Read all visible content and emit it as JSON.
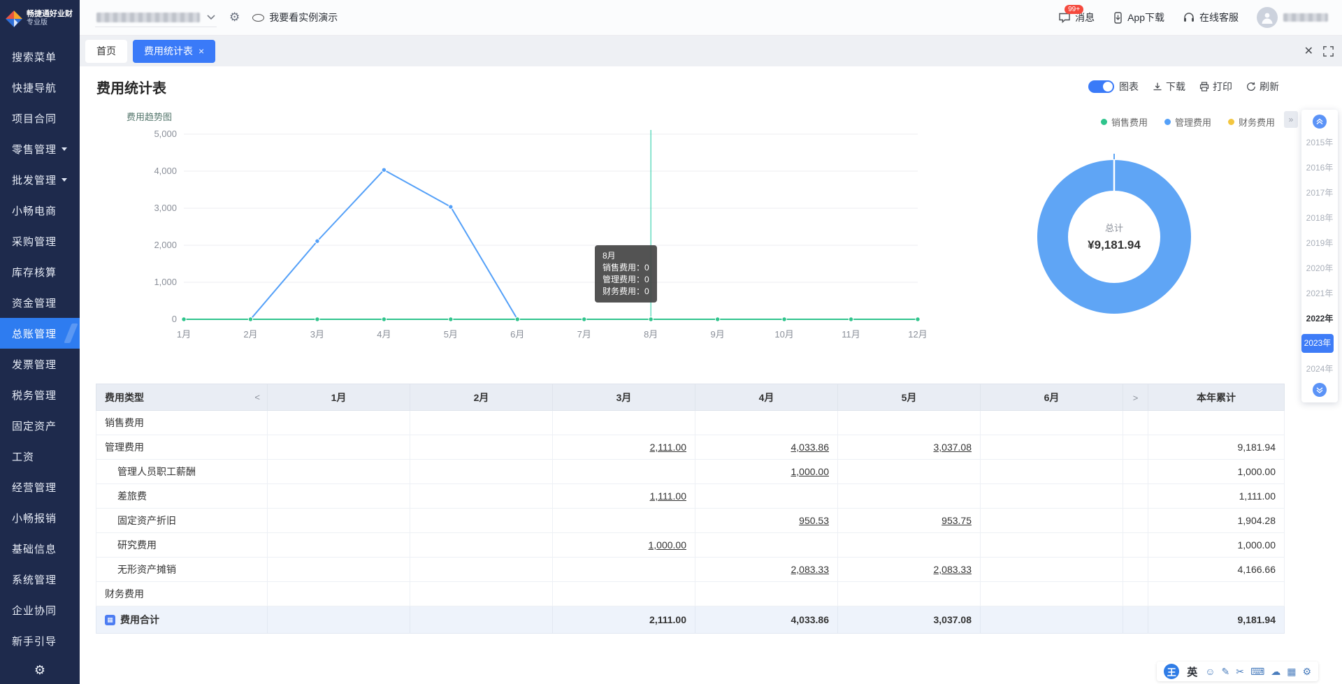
{
  "app": {
    "logo_title": "畅捷通好业财",
    "logo_subtitle": "专业版"
  },
  "sidebar": {
    "items": [
      {
        "label": "搜索菜单"
      },
      {
        "label": "快捷导航"
      },
      {
        "label": "项目合同"
      },
      {
        "label": "零售管理",
        "caret": true
      },
      {
        "label": "批发管理",
        "caret": true
      },
      {
        "label": "小畅电商"
      },
      {
        "label": "采购管理"
      },
      {
        "label": "库存核算"
      },
      {
        "label": "资金管理"
      },
      {
        "label": "总账管理",
        "active": true
      },
      {
        "label": "发票管理"
      },
      {
        "label": "税务管理"
      },
      {
        "label": "固定资产"
      },
      {
        "label": "工资"
      },
      {
        "label": "经营管理"
      },
      {
        "label": "小畅报销"
      },
      {
        "label": "基础信息"
      },
      {
        "label": "系统管理"
      },
      {
        "label": "企业协同"
      },
      {
        "label": "新手引导"
      }
    ]
  },
  "topbar": {
    "demo_link": "我要看实例演示",
    "messages_label": "消息",
    "messages_badge": "99+",
    "app_download_label": "App下载",
    "support_label": "在线客服"
  },
  "tabbar": {
    "tabs": [
      {
        "label": "首页",
        "active": false
      },
      {
        "label": "费用统计表",
        "active": true,
        "closable": true
      }
    ]
  },
  "page": {
    "title": "费用统计表",
    "toggle_label": "图表",
    "download_label": "下载",
    "print_label": "打印",
    "refresh_label": "刷新"
  },
  "chart_data": [
    {
      "type": "line",
      "title": "费用趋势图",
      "categories": [
        "1月",
        "2月",
        "3月",
        "4月",
        "5月",
        "6月",
        "7月",
        "8月",
        "9月",
        "10月",
        "11月",
        "12月"
      ],
      "series": [
        {
          "name": "销售费用",
          "color": "#2fc48c",
          "values": [
            0,
            0,
            0,
            0,
            0,
            0,
            0,
            0,
            0,
            0,
            0,
            0
          ]
        },
        {
          "name": "管理费用",
          "color": "#54a0f8",
          "values": [
            0,
            0,
            2111.0,
            4033.86,
            3037.08,
            0,
            0,
            0,
            0,
            0,
            0,
            0
          ]
        },
        {
          "name": "财务费用",
          "color": "#f3c63f",
          "values": [
            0,
            0,
            0,
            0,
            0,
            0,
            0,
            0,
            0,
            0,
            0,
            0
          ]
        }
      ],
      "ylim": [
        0,
        5000
      ],
      "yticks": [
        0,
        1000,
        2000,
        3000,
        4000,
        5000
      ],
      "legend_position": "top-right",
      "grid": true,
      "tooltip": {
        "month": "8月",
        "lines": [
          "销售费用：0",
          "管理费用：0",
          "财务费用：0"
        ],
        "crosshair_color": "#40d2b0"
      }
    },
    {
      "type": "donut",
      "total_label": "总计",
      "total_value": "¥9,181.94",
      "slices": [
        {
          "name": "管理费用",
          "value": 9181.94,
          "color": "#5fa5f5"
        },
        {
          "name": "销售费用",
          "value": 0,
          "color": "#2fc48c"
        },
        {
          "name": "财务费用",
          "value": 0,
          "color": "#f3c63f"
        }
      ]
    }
  ],
  "year_panel": {
    "years": [
      "2015年",
      "2016年",
      "2017年",
      "2018年",
      "2019年",
      "2020年",
      "2021年",
      "2022年",
      "2023年",
      "2024年"
    ],
    "selected": "2023年",
    "bold": "2022年"
  },
  "table": {
    "name_header": "费用类型",
    "month_headers": [
      "1月",
      "2月",
      "3月",
      "4月",
      "5月",
      "6月"
    ],
    "total_header": "本年累计",
    "rows": [
      {
        "name": "销售费用",
        "indent": 0,
        "values": [
          "",
          "",
          "",
          "",
          "",
          ""
        ],
        "total": ""
      },
      {
        "name": "管理费用",
        "indent": 0,
        "values": [
          "",
          "",
          "2,111.00",
          "4,033.86",
          "3,037.08",
          ""
        ],
        "total": "9,181.94"
      },
      {
        "name": "管理人员职工薪酬",
        "indent": 1,
        "values": [
          "",
          "",
          "",
          "1,000.00",
          "",
          ""
        ],
        "total": "1,000.00"
      },
      {
        "name": "差旅费",
        "indent": 1,
        "values": [
          "",
          "",
          "1,111.00",
          "",
          "",
          ""
        ],
        "total": "1,111.00"
      },
      {
        "name": "固定资产折旧",
        "indent": 1,
        "values": [
          "",
          "",
          "",
          "950.53",
          "953.75",
          ""
        ],
        "total": "1,904.28"
      },
      {
        "name": "研究费用",
        "indent": 1,
        "values": [
          "",
          "",
          "1,000.00",
          "",
          "",
          ""
        ],
        "total": "1,000.00"
      },
      {
        "name": "无形资产摊销",
        "indent": 1,
        "values": [
          "",
          "",
          "",
          "2,083.33",
          "2,083.33",
          ""
        ],
        "total": "4,166.66"
      },
      {
        "name": "财务费用",
        "indent": 0,
        "values": [
          "",
          "",
          "",
          "",
          "",
          ""
        ],
        "total": ""
      }
    ],
    "footer": {
      "name": "费用合计",
      "values": [
        "",
        "",
        "2,111.00",
        "4,033.86",
        "3,037.08",
        ""
      ],
      "total": "9,181.94"
    }
  },
  "ime": {
    "logo": "王",
    "lang": "英",
    "icons": [
      "smiley",
      "pen",
      "scissors",
      "keyboard",
      "cloud",
      "grid",
      "gear"
    ]
  }
}
